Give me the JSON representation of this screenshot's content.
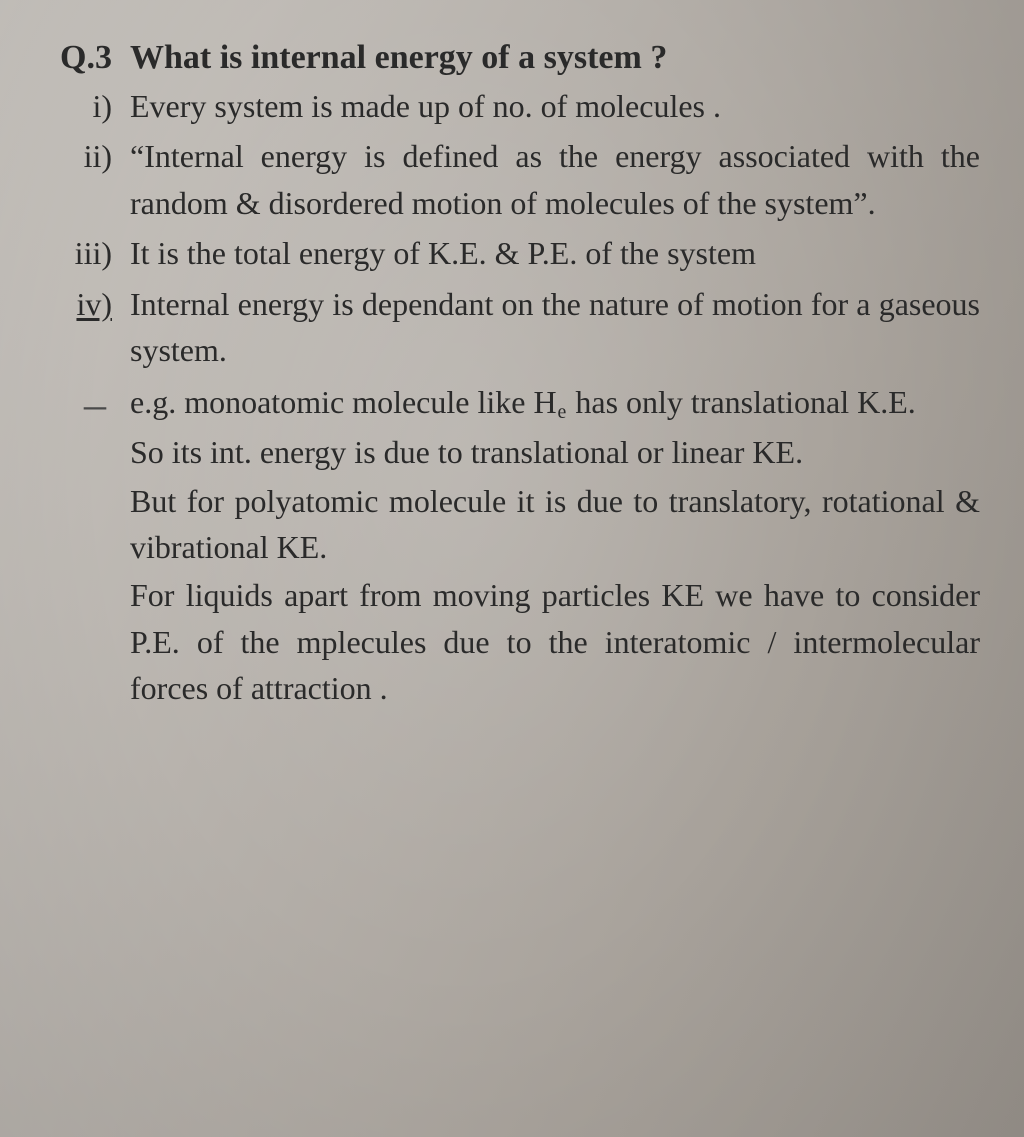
{
  "page": {
    "background_gradient": [
      "#c8c4bf",
      "#b5b0aa",
      "#a8a29b",
      "#9c968f"
    ],
    "text_color": "#2a2a2a",
    "font_family": "Times New Roman",
    "base_fontsize_pt": 24
  },
  "question": {
    "number": "Q.3",
    "title": "What is internal energy of a system ?"
  },
  "items": [
    {
      "marker": "i)",
      "underlined": false,
      "lines": [
        "Every system is made up of no. of molecules ."
      ]
    },
    {
      "marker": "ii)",
      "underlined": false,
      "lines": [
        "“Internal energy is defined as the energy associated with the random & disordered motion of molecules of the system”."
      ]
    },
    {
      "marker": "iii)",
      "underlined": false,
      "lines": [
        "It is the total energy of K.E. & P.E. of the system"
      ]
    },
    {
      "marker": "iv)",
      "underlined": true,
      "lines": [
        "Internal energy is dependant on the nature of motion for a gaseous system."
      ]
    }
  ],
  "dash_block": {
    "marker": "–",
    "line1_pre": "e.g. monoatomic molecule like H",
    "line1_sub": "e",
    "line1_post": " has only translational K.E.",
    "line2": "So its int. energy is due to translational or linear KE.",
    "line3": "But for polyatomic molecule it is due to translatory, rotational & vibrational KE.",
    "line4": "For liquids apart from moving particles KE we have to consider P.E. of the mplecules due to the interatomic / intermolecular forces of attraction ."
  }
}
